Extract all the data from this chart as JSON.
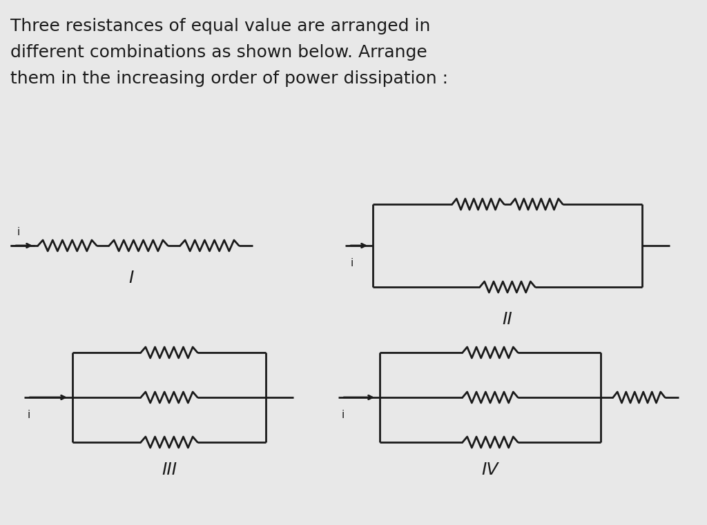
{
  "title": "Three resistances of equal value are arranged in\ndifferent combinations as shown below. Arrange\nthem in the increasing order of power dissipation :",
  "title_fontsize": 18,
  "bg_color": "#e8e8e8",
  "line_color": "#1a1a1a",
  "label_fontsize": 18,
  "circuit_labels": [
    "I",
    "II",
    "III",
    "IV"
  ],
  "resistor_color": "#1a1a1a"
}
